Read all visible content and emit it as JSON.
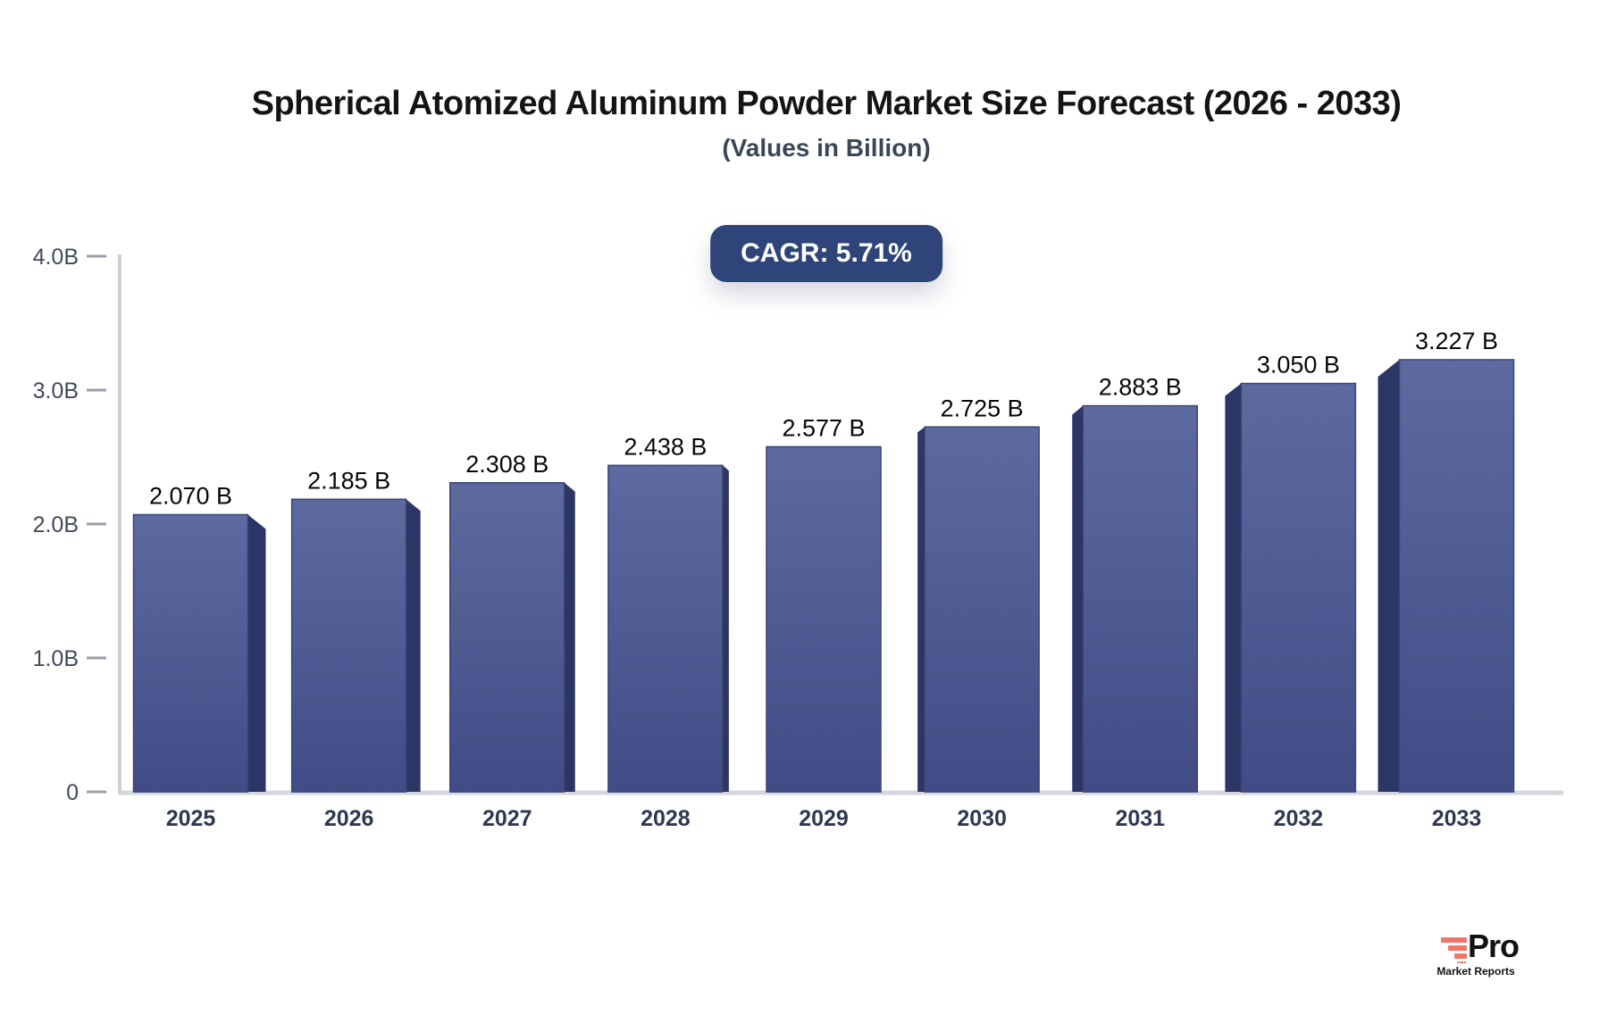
{
  "title": "Spherical Atomized Aluminum Powder Market Size Forecast (2026 - 2033)",
  "subtitle": "(Values in Billion)",
  "cagr_badge": "CAGR: 5.71%",
  "chart_data": {
    "type": "bar",
    "categories": [
      "2025",
      "2026",
      "2027",
      "2028",
      "2029",
      "2030",
      "2031",
      "2032",
      "2033"
    ],
    "values": [
      2.07,
      2.185,
      2.308,
      2.438,
      2.577,
      2.725,
      2.883,
      3.05,
      3.227
    ],
    "bar_labels": [
      "2.070 B",
      "2.185 B",
      "2.308 B",
      "2.438 B",
      "2.577 B",
      "2.725 B",
      "2.883 B",
      "3.050 B",
      "3.227 B"
    ],
    "title": "Spherical Atomized Aluminum Powder Market Size Forecast (2026 - 2033)",
    "subtitle": "(Values in Billion)",
    "xlabel": "",
    "ylabel": "",
    "ylim": [
      0,
      4.0
    ],
    "grid": false,
    "legend": "none",
    "y_ticks": [
      {
        "value": 4.0,
        "label": "4.0B"
      },
      {
        "value": 3.0,
        "label": "3.0B"
      },
      {
        "value": 2.0,
        "label": "2.0B"
      },
      {
        "value": 1.0,
        "label": "1.0B"
      },
      {
        "value": 0,
        "label": "0"
      }
    ]
  },
  "colors": {
    "title_text": "#141414",
    "subtitle_text": "#3a4657",
    "badge_bg": "#2f4479",
    "badge_text": "#ffffff",
    "bar_face_top": "#5d6aa0",
    "bar_face_bottom": "#414c86",
    "bar_side": "#2b3566",
    "bar_outline": "#3a4474",
    "axis_y_line": "#ccd0d9",
    "axis_x_line": "#d4d7dd",
    "tick_dash": "#99a0ac",
    "tick_text": "#424a59",
    "year_text": "#2e3850",
    "value_text": "#080808",
    "logo_accent": "#f0756a"
  },
  "logo": {
    "name": "Pro",
    "tagline": "Market Reports"
  }
}
